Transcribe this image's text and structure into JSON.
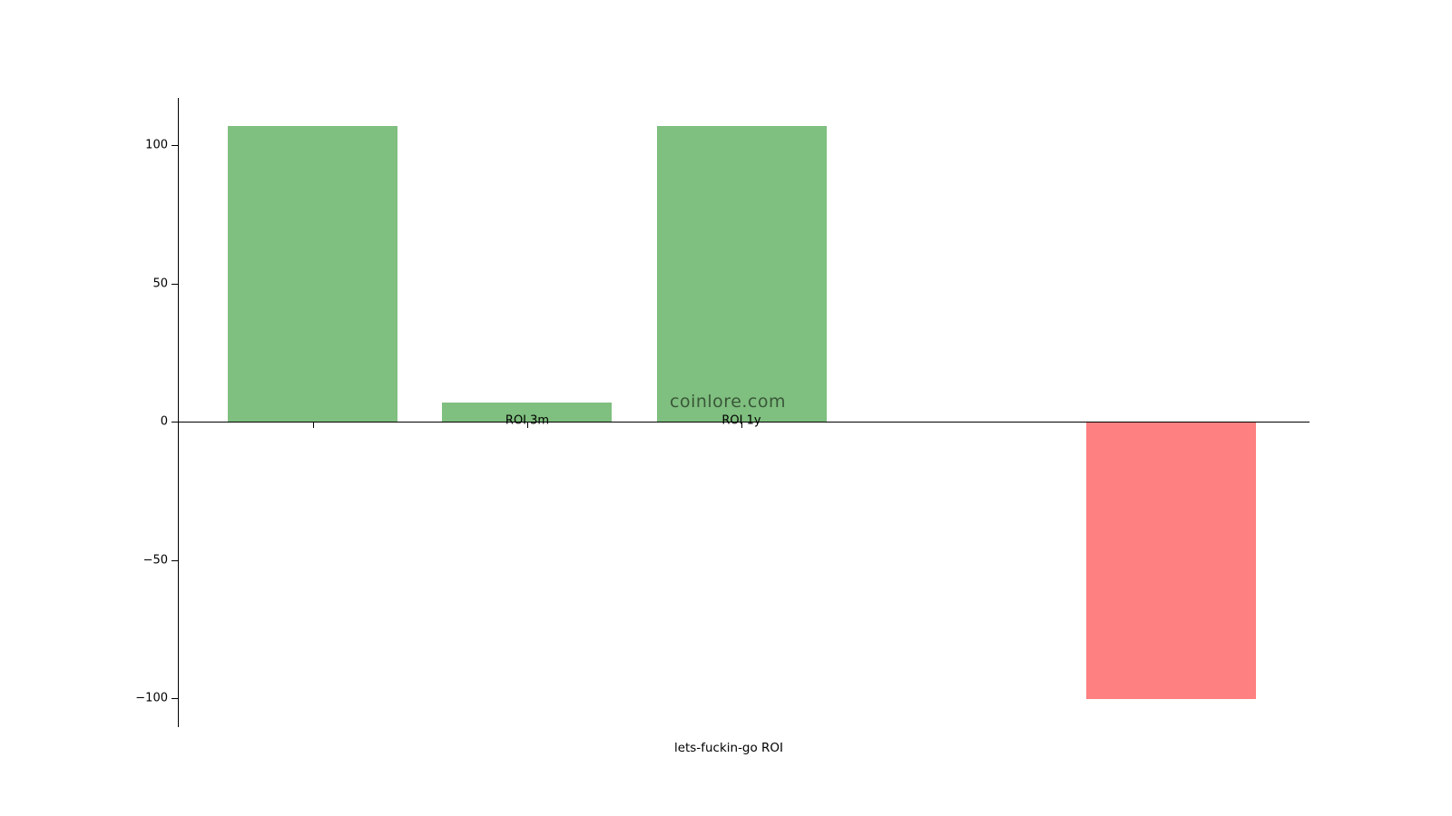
{
  "watermark_text": "coinlore.com",
  "chart_data": {
    "type": "bar",
    "title": "lets-fuckin-go ROI",
    "xlabel": "",
    "ylabel": "",
    "categories": [
      "",
      "ROI 3m",
      "ROI 1y",
      "",
      ""
    ],
    "values": [
      107,
      7,
      107,
      0,
      -100
    ],
    "x_tick_visible": [
      true,
      true,
      true,
      false,
      false
    ],
    "yticks": [
      100,
      50,
      0,
      -50,
      -100
    ],
    "ytick_labels": [
      "100",
      "50",
      "0",
      "−50",
      "−100"
    ],
    "ylim": [
      -110.5,
      117
    ],
    "grid": false,
    "legend_position": "none",
    "colors": {
      "positive_bar": "#7fbf7f",
      "negative_bar": "#ff8080",
      "axis": "#000000",
      "watermark": "rgba(0,0,0,0.55)",
      "background": "#ffffff"
    },
    "annotations": [
      "coinlore.com"
    ]
  }
}
